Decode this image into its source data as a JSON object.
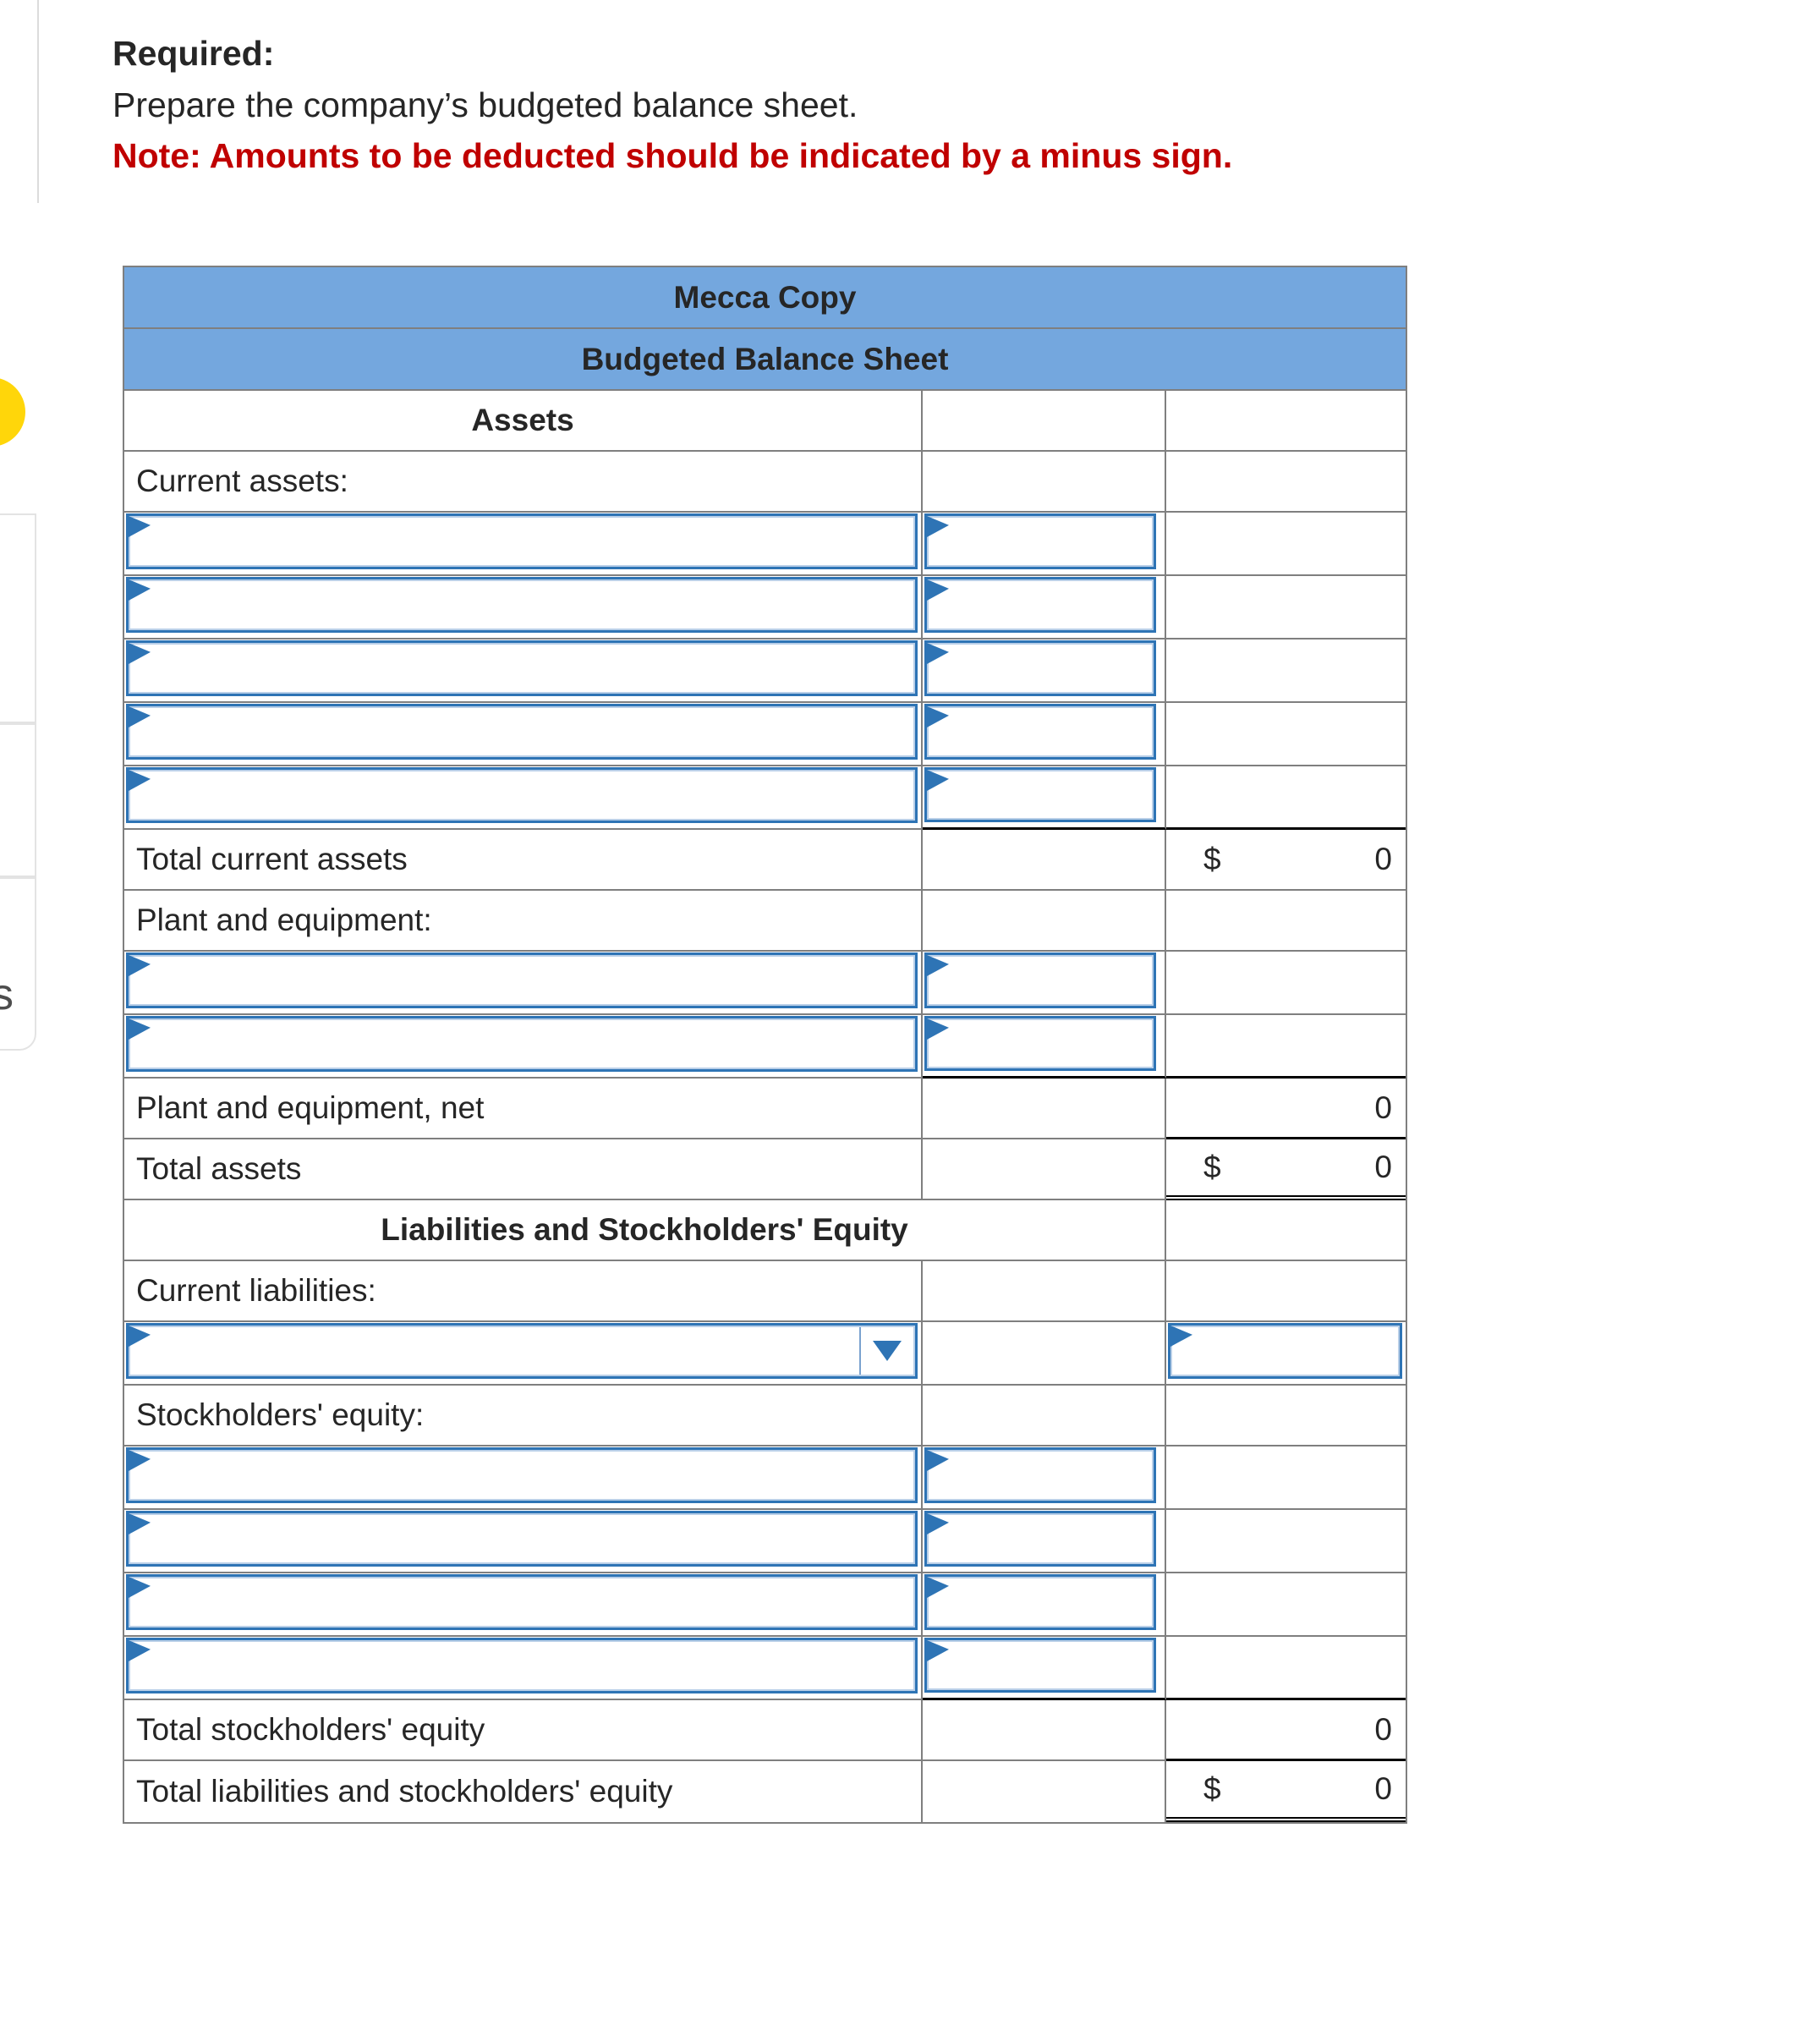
{
  "instructions": {
    "required_label": "Required:",
    "task": "Prepare the company’s budgeted balance sheet.",
    "note": "Note: Amounts to be deducted should be indicated by a minus sign."
  },
  "left_rail": {
    "partial_text": "s"
  },
  "table": {
    "title": "Mecca Copy",
    "subtitle": "Budgeted Balance Sheet",
    "assets_header": "Assets",
    "current_assets_label": "Current assets:",
    "current_asset_rows": [
      {
        "account": "",
        "amount": ""
      },
      {
        "account": "",
        "amount": ""
      },
      {
        "account": "",
        "amount": ""
      },
      {
        "account": "",
        "amount": ""
      },
      {
        "account": "",
        "amount": ""
      }
    ],
    "total_current_assets": {
      "label": "Total current assets",
      "currency": "$",
      "value": "0"
    },
    "plant_label": "Plant and equipment:",
    "plant_rows": [
      {
        "account": "",
        "amount": ""
      },
      {
        "account": "",
        "amount": ""
      }
    ],
    "plant_net": {
      "label": "Plant and equipment, net",
      "value": "0"
    },
    "total_assets": {
      "label": "Total assets",
      "currency": "$",
      "value": "0"
    },
    "liabilities_header": "Liabilities and Stockholders' Equity",
    "current_liabilities_label": "Current liabilities:",
    "current_liability_row": {
      "selected": "",
      "amount": ""
    },
    "stockholders_equity_label": "Stockholders' equity:",
    "equity_rows": [
      {
        "account": "",
        "amount": ""
      },
      {
        "account": "",
        "amount": ""
      },
      {
        "account": "",
        "amount": ""
      },
      {
        "account": "",
        "amount": ""
      }
    ],
    "total_stockholders_equity": {
      "label": "Total stockholders' equity",
      "value": "0"
    },
    "total_liabilities_equity": {
      "label": "Total liabilities and stockholders' equity",
      "currency": "$",
      "value": "0"
    }
  },
  "colors": {
    "header_blue": "#74a7de",
    "input_border_blue": "#2e74b5",
    "grid_gray": "#7f7f7f",
    "note_red": "#c00000",
    "highlight_yellow": "#ffd60a"
  }
}
